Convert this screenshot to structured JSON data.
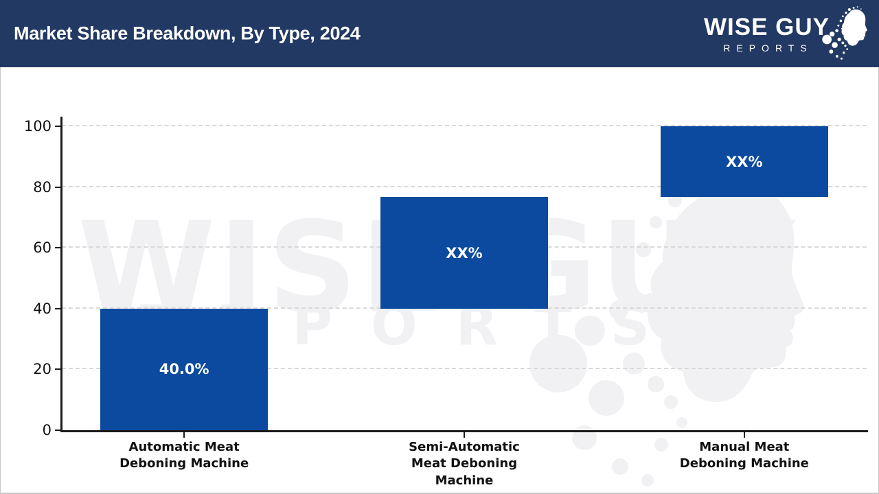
{
  "header": {
    "title": "Market Share Breakdown, By Type, 2024",
    "bg_color": "#223963",
    "logo": {
      "line1": "WISE GUY",
      "line2": "REPORTS"
    }
  },
  "watermark": {
    "line1": "WISE GUY",
    "line2": "REPORTS"
  },
  "chart_data": {
    "type": "bar",
    "subtype": "waterfall",
    "title": "Market Share Breakdown, By Type, 2024",
    "categories": [
      "Automatic Meat Deboning Machine",
      "Semi-Automatic Meat Deboning Machine",
      "Manual Meat Deboning Machine"
    ],
    "category_lines": [
      [
        "Automatic Meat",
        "Deboning Machine"
      ],
      [
        "Semi-Automatic",
        "Meat Deboning",
        "Machine"
      ],
      [
        "Manual Meat",
        "Deboning Machine"
      ]
    ],
    "segments": [
      {
        "start": 0,
        "end": 40.0,
        "label": "40.0%"
      },
      {
        "start": 40.0,
        "end": 76.7,
        "label": "XX%"
      },
      {
        "start": 76.7,
        "end": 100.0,
        "label": "XX%"
      }
    ],
    "yticks": [
      0,
      20,
      40,
      60,
      80,
      100
    ],
    "ylim": [
      0,
      100
    ],
    "xlabel": "",
    "ylabel": "",
    "legend": "none",
    "grid": "horizontal-dashed",
    "bar_color": "#0b4a9e",
    "value_label_color": "#ffffff",
    "axis_color": "#1a1a1a",
    "gridline_color": "#d9d9d9"
  }
}
